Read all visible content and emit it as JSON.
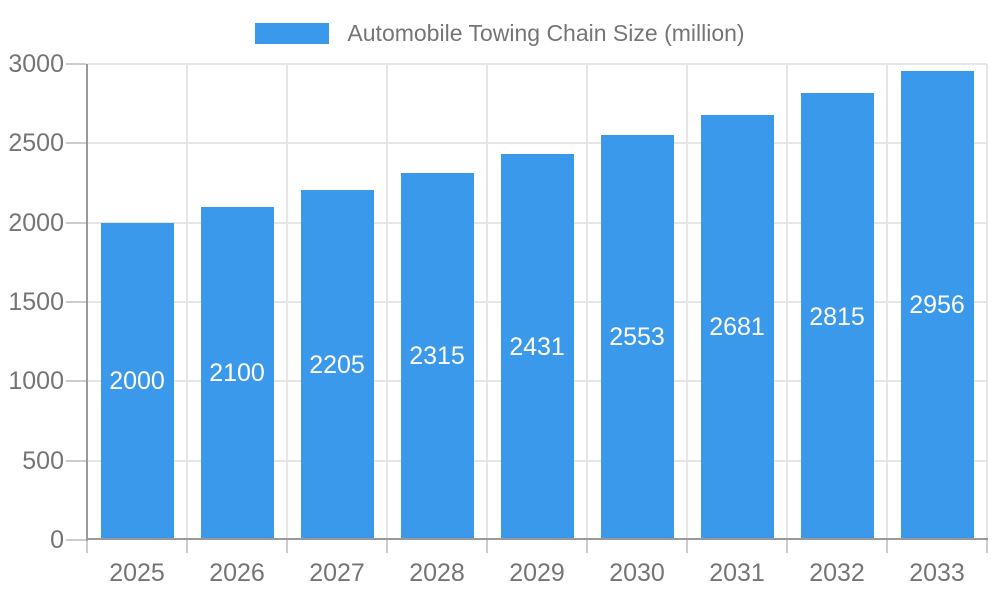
{
  "legend": {
    "label": "Automobile Towing Chain Size (million)"
  },
  "chart_data": {
    "type": "bar",
    "title": "Automobile Towing Chain Size (million)",
    "categories": [
      "2025",
      "2026",
      "2027",
      "2028",
      "2029",
      "2030",
      "2031",
      "2032",
      "2033"
    ],
    "values": [
      2000,
      2100,
      2205,
      2315,
      2431,
      2553,
      2681,
      2815,
      2956
    ],
    "xlabel": "",
    "ylabel": "",
    "ylim": [
      0,
      3000
    ],
    "yticks": [
      0,
      500,
      1000,
      1500,
      2000,
      2500,
      3000
    ],
    "grid": true,
    "bar_labels_visible": true,
    "legend_position": "top-center",
    "colors": {
      "bar": "#3B99EC",
      "bar_label": "#FFFFFF",
      "axis_line": "#999999",
      "tick_mark": "#CCCCCC",
      "grid_line": "#E6E6E6",
      "tick_label": "#757575",
      "legend_text": "#757575",
      "background": "#FFFFFF"
    }
  }
}
